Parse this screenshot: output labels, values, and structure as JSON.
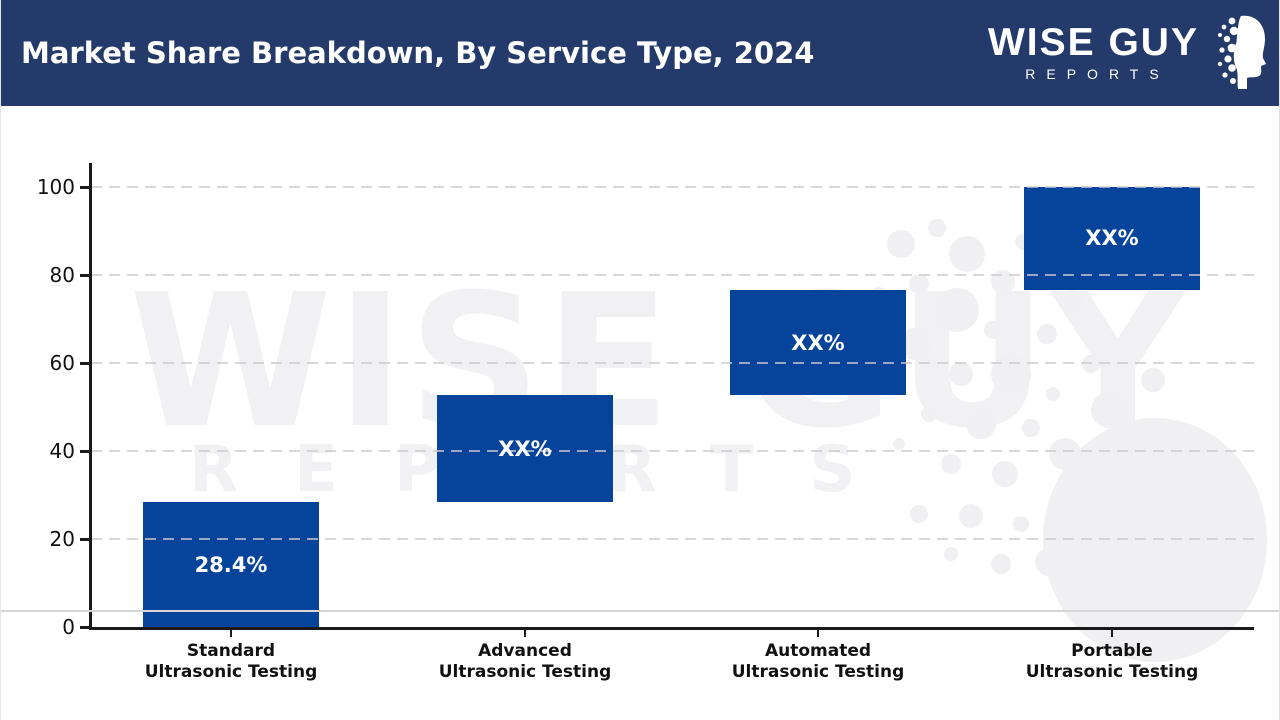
{
  "header": {
    "title": "Market Share Breakdown, By Service Type, 2024",
    "logo": {
      "name": "WISE GUY",
      "sub": "REPORTS"
    }
  },
  "watermark": {
    "line1": "WISE GUY",
    "line2": "REPORTS"
  },
  "chart_data": {
    "type": "bar",
    "subtype": "waterfall-floating-bars",
    "title": "Market Share Breakdown, By Service Type, 2024",
    "categories": [
      {
        "line1": "Standard",
        "line2": "Ultrasonic Testing"
      },
      {
        "line1": "Advanced",
        "line2": "Ultrasonic Testing"
      },
      {
        "line1": "Automated",
        "line2": "Ultrasonic Testing"
      },
      {
        "line1": "Portable",
        "line2": "Ultrasonic Testing"
      }
    ],
    "segments": [
      {
        "start": 0,
        "end": 28.4,
        "label": "28.4%"
      },
      {
        "start": 28.4,
        "end": 52.7,
        "label": "XX%"
      },
      {
        "start": 52.7,
        "end": 76.6,
        "label": "XX%"
      },
      {
        "start": 76.6,
        "end": 100,
        "label": "XX%"
      }
    ],
    "ylim": [
      0,
      100
    ],
    "yticks": [
      0,
      20,
      40,
      60,
      80,
      100
    ],
    "grid": "horizontal-dashed",
    "legend": "none",
    "bar_color": "#06439a",
    "value_label_color": "#ffffff"
  }
}
